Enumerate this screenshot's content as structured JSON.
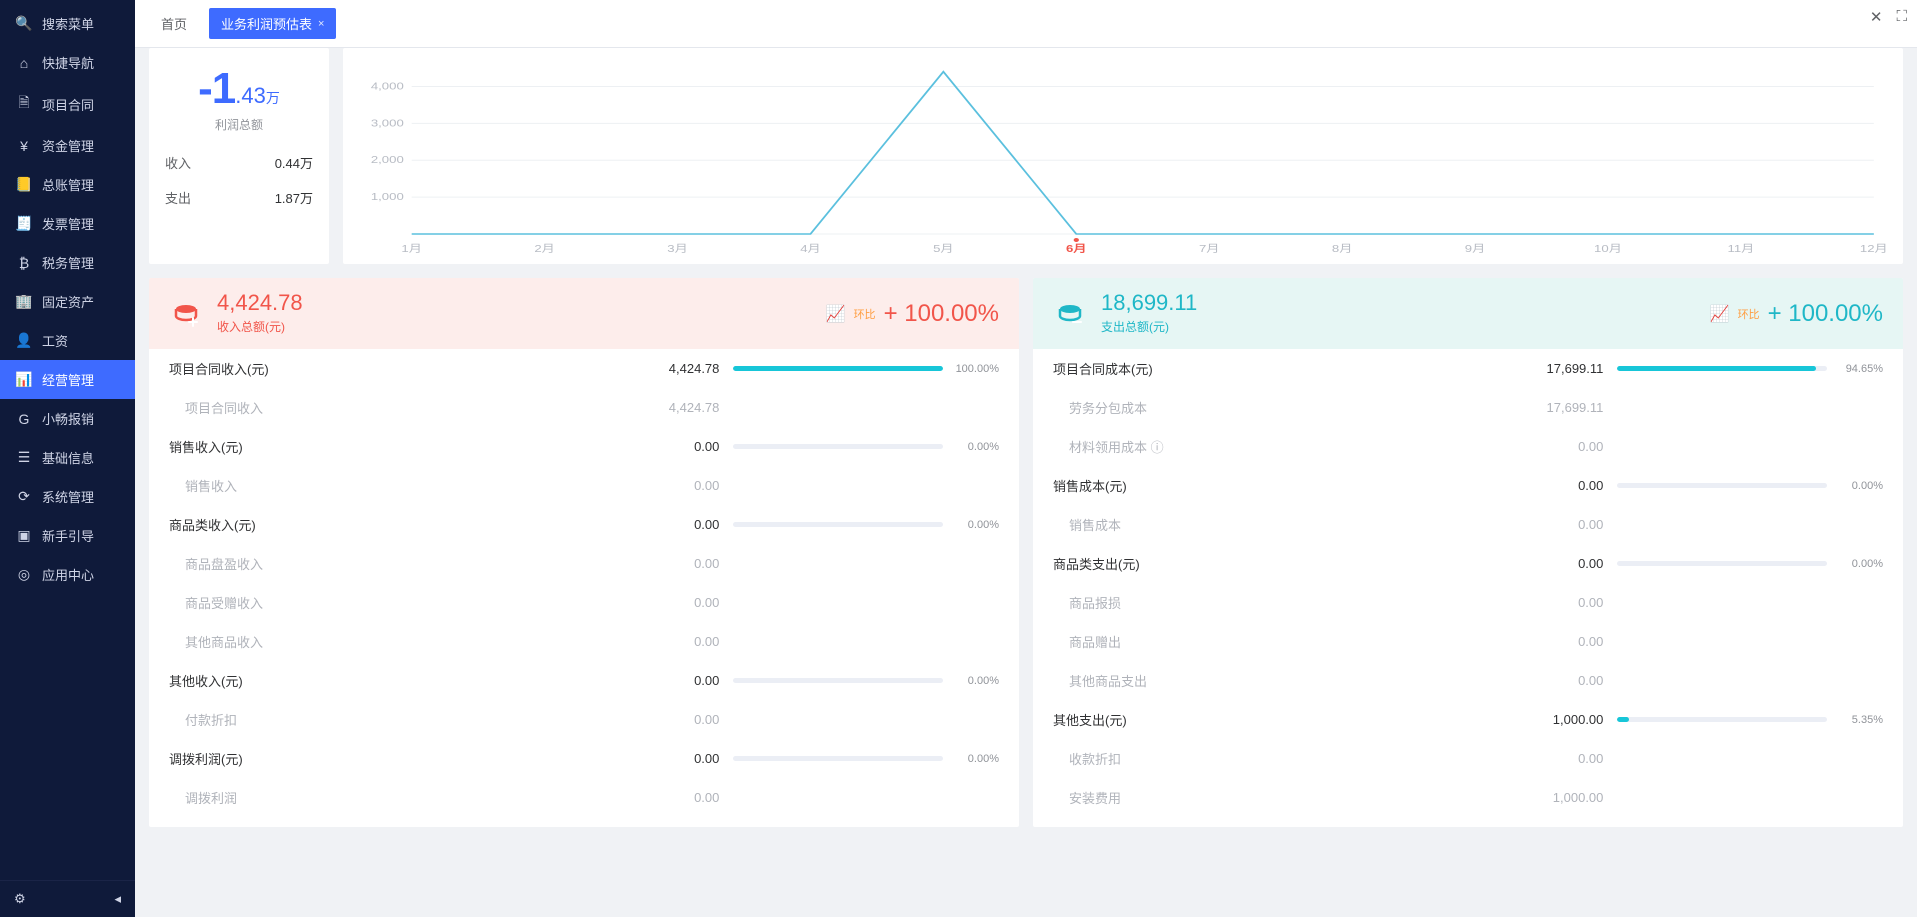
{
  "colors": {
    "sidebar_bg": "#0f1a3a",
    "sidebar_active": "#3e6bff",
    "accent_red": "#f1554a",
    "accent_red_bg": "#fdedeb",
    "accent_cyan": "#1fb7c7",
    "accent_cyan_bg": "#e6f6f4",
    "bar_cyan": "#17c6d8",
    "bar_gray": "#dcdfe6",
    "trend_orange": "#ff9f43",
    "chart_line": "#5bc0de"
  },
  "sidebar": {
    "items": [
      {
        "icon": "🔍",
        "label": "搜索菜单"
      },
      {
        "icon": "⌂",
        "label": "快捷导航"
      },
      {
        "icon": "🗎",
        "label": "项目合同"
      },
      {
        "icon": "¥",
        "label": "资金管理"
      },
      {
        "icon": "📒",
        "label": "总账管理"
      },
      {
        "icon": "🧾",
        "label": "发票管理"
      },
      {
        "icon": "₿",
        "label": "税务管理"
      },
      {
        "icon": "🏢",
        "label": "固定资产"
      },
      {
        "icon": "👤",
        "label": "工资"
      },
      {
        "icon": "📊",
        "label": "经营管理",
        "active": true
      },
      {
        "icon": "G",
        "label": "小畅报销"
      },
      {
        "icon": "☰",
        "label": "基础信息"
      },
      {
        "icon": "⟳",
        "label": "系统管理"
      },
      {
        "icon": "▣",
        "label": "新手引导"
      },
      {
        "icon": "◎",
        "label": "应用中心"
      }
    ],
    "bottom_gear": "⚙",
    "bottom_collapse": "◂"
  },
  "tabs": {
    "home": "首页",
    "active": "业务利润预估表"
  },
  "overview": {
    "big_number_int": "-1",
    "big_number_dec": ".43",
    "big_number_unit": "万",
    "big_number_label": "利润总额",
    "big_number_color": "#3e6bff",
    "rows": [
      {
        "label": "收入",
        "value": "0.44万"
      },
      {
        "label": "支出",
        "value": "1.87万"
      }
    ]
  },
  "chart": {
    "type": "line",
    "x_labels": [
      "1月",
      "2月",
      "3月",
      "4月",
      "5月",
      "6月",
      "7月",
      "8月",
      "9月",
      "10月",
      "11月",
      "12月"
    ],
    "highlight_x_index": 5,
    "y_ticks": [
      1000,
      2000,
      3000,
      4000
    ],
    "ylim": [
      0,
      4500
    ],
    "series": [
      {
        "color": "#5bc0de",
        "values": [
          0,
          0,
          0,
          0,
          4400,
          0,
          0,
          0,
          0,
          0,
          0,
          0
        ]
      }
    ],
    "grid_color": "#edf0f3",
    "axis_color": "#b8bcc4",
    "highlight_color": "#f1554a"
  },
  "income": {
    "head_amount": "4,424.78",
    "head_label": "收入总额(元)",
    "hb_label": "环比",
    "hb_value": "+ 100.00%",
    "rows": [
      {
        "name": "项目合同收入(元)",
        "value": "4,424.78",
        "pct": 100.0,
        "bar": true
      },
      {
        "name": "项目合同收入",
        "value": "4,424.78",
        "sub": true
      },
      {
        "name": "销售收入(元)",
        "value": "0.00",
        "pct": 0.0,
        "bar": true
      },
      {
        "name": "销售收入",
        "value": "0.00",
        "sub": true
      },
      {
        "name": "商品类收入(元)",
        "value": "0.00",
        "pct": 0.0,
        "bar": true
      },
      {
        "name": "商品盘盈收入",
        "value": "0.00",
        "sub": true
      },
      {
        "name": "商品受赠收入",
        "value": "0.00",
        "sub": true
      },
      {
        "name": "其他商品收入",
        "value": "0.00",
        "sub": true
      },
      {
        "name": "其他收入(元)",
        "value": "0.00",
        "pct": 0.0,
        "bar": true
      },
      {
        "name": "付款折扣",
        "value": "0.00",
        "sub": true
      },
      {
        "name": "调拨利润(元)",
        "value": "0.00",
        "pct": 0.0,
        "bar": true
      },
      {
        "name": "调拨利润",
        "value": "0.00",
        "sub": true
      }
    ]
  },
  "expense": {
    "head_amount": "18,699.11",
    "head_label": "支出总额(元)",
    "hb_label": "环比",
    "hb_value": "+ 100.00%",
    "rows": [
      {
        "name": "项目合同成本(元)",
        "value": "17,699.11",
        "pct": 94.65,
        "bar": true
      },
      {
        "name": "劳务分包成本",
        "value": "17,699.11",
        "sub": true
      },
      {
        "name": "材料领用成本 ⓘ",
        "value": "0.00",
        "sub": true
      },
      {
        "name": "销售成本(元)",
        "value": "0.00",
        "pct": 0.0,
        "bar": true
      },
      {
        "name": "销售成本",
        "value": "0.00",
        "sub": true
      },
      {
        "name": "商品类支出(元)",
        "value": "0.00",
        "pct": 0.0,
        "bar": true
      },
      {
        "name": "商品报损",
        "value": "0.00",
        "sub": true
      },
      {
        "name": "商品赠出",
        "value": "0.00",
        "sub": true
      },
      {
        "name": "其他商品支出",
        "value": "0.00",
        "sub": true
      },
      {
        "name": "其他支出(元)",
        "value": "1,000.00",
        "pct": 5.35,
        "bar": true
      },
      {
        "name": "收款折扣",
        "value": "0.00",
        "sub": true
      },
      {
        "name": "安装费用",
        "value": "1,000.00",
        "sub": true
      }
    ]
  }
}
